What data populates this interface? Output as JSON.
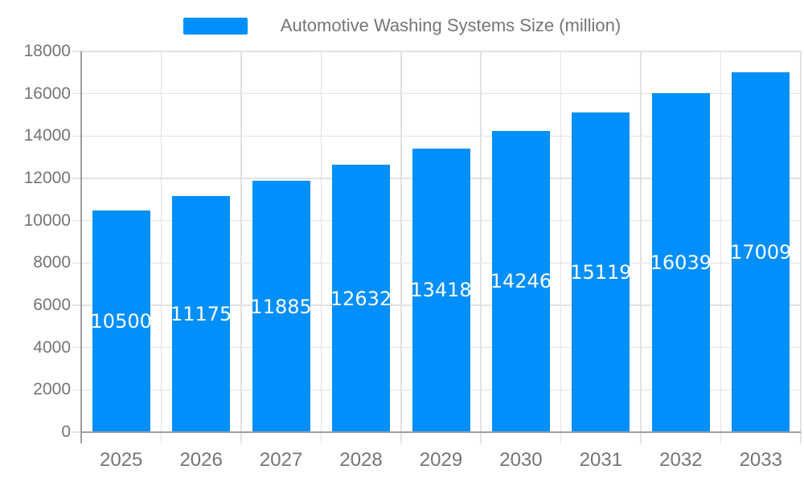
{
  "legend": {
    "items": [
      {
        "label": "Automotive Washing Systems Size (million)",
        "marker_color": "#008FFB"
      }
    ],
    "position": "top-center"
  },
  "chart_data": {
    "type": "bar",
    "title": "Automotive Washing Systems Size (million)",
    "categories": [
      "2025",
      "2026",
      "2027",
      "2028",
      "2029",
      "2030",
      "2031",
      "2032",
      "2033"
    ],
    "series": [
      {
        "name": "Automotive Washing Systems Size (million)",
        "values": [
          10500,
          11175,
          11885,
          12632,
          13418,
          14246,
          15119,
          16039,
          17009
        ]
      }
    ],
    "data_labels": [
      "10500",
      "11175",
      "11885",
      "12632",
      "13418",
      "14246",
      "15119",
      "16039",
      "17009"
    ],
    "xlabel": "",
    "ylabel": "",
    "ylim": [
      0,
      18000
    ],
    "ytick_step": 2000,
    "ytick_labels": [
      "0",
      "2000",
      "4000",
      "6000",
      "8000",
      "10000",
      "12000",
      "14000",
      "16000",
      "18000"
    ],
    "grid": true,
    "legend_position": "top-center",
    "colors": {
      "bar": "#008FFB",
      "bar_label_text": "#ffffff",
      "axis_line": "#9e9e9e",
      "gridline": "#e2e2e2",
      "tick_label_text": "#757575",
      "legend_text": "#757575",
      "background": "#ffffff"
    }
  }
}
